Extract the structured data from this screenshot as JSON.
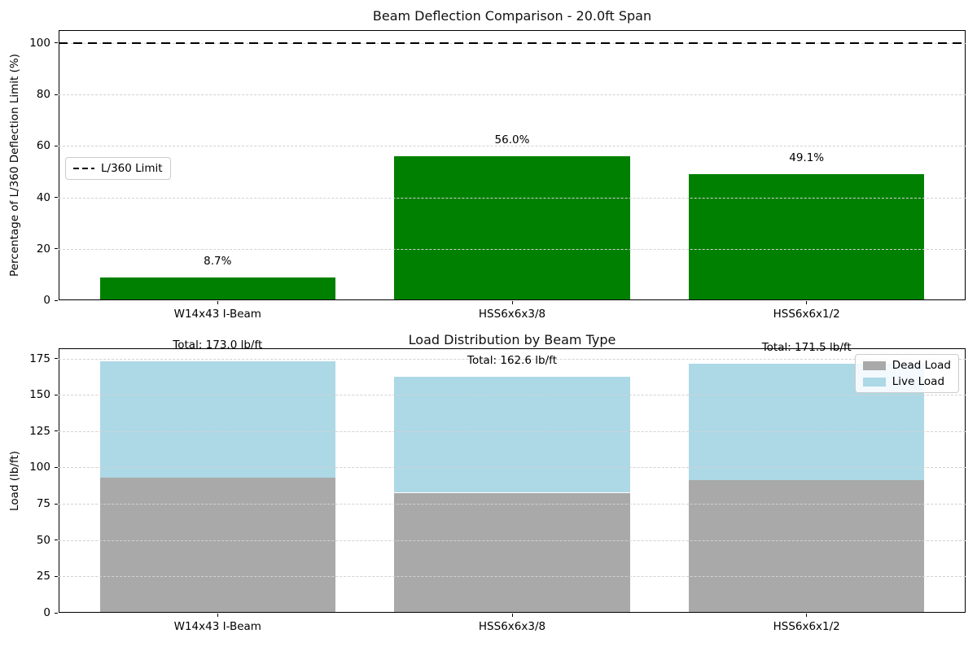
{
  "chart_data": [
    {
      "type": "bar",
      "title": "Beam Deflection Comparison - 20.0ft Span",
      "ylabel": "Percentage of L/360 Deflection Limit (%)",
      "categories": [
        "W14x43 I-Beam",
        "HSS6x6x3/8",
        "HSS6x6x1/2"
      ],
      "values": [
        8.7,
        56.0,
        49.1
      ],
      "bar_labels": [
        "8.7%",
        "56.0%",
        "49.1%"
      ],
      "bar_color": "#008000",
      "ylim": [
        0,
        105
      ],
      "yticks": [
        0,
        20,
        40,
        60,
        80,
        100
      ],
      "grid": true,
      "legend_position": "center-left",
      "reference_line": {
        "value": 100,
        "style": "dashed",
        "color": "#000000",
        "label": "L/360 Limit"
      },
      "legend": {
        "entries": [
          {
            "label": "L/360 Limit",
            "swatch": "dashed-line",
            "color": "#000000"
          }
        ]
      }
    },
    {
      "type": "stacked_bar",
      "title": "Load Distribution by Beam Type",
      "ylabel": "Load (lb/ft)",
      "categories": [
        "W14x43 I-Beam",
        "HSS6x6x3/8",
        "HSS6x6x1/2"
      ],
      "series": [
        {
          "name": "Dead Load",
          "color": "#a9a9a9",
          "values": [
            93.0,
            82.6,
            91.5
          ]
        },
        {
          "name": "Live Load",
          "color": "#add8e6",
          "values": [
            80.0,
            80.0,
            80.0
          ]
        }
      ],
      "totals": [
        173.0,
        162.6,
        171.5
      ],
      "bar_labels": [
        "Total: 173.0 lb/ft",
        "Total: 162.6 lb/ft",
        "Total: 171.5 lb/ft"
      ],
      "ylim": [
        0,
        182
      ],
      "yticks": [
        0,
        25,
        50,
        75,
        100,
        125,
        150,
        175
      ],
      "grid": true,
      "legend_position": "top-right",
      "legend": {
        "entries": [
          {
            "label": "Dead Load",
            "swatch": "patch",
            "color": "#a9a9a9"
          },
          {
            "label": "Live Load",
            "swatch": "patch",
            "color": "#add8e6"
          }
        ]
      }
    }
  ]
}
